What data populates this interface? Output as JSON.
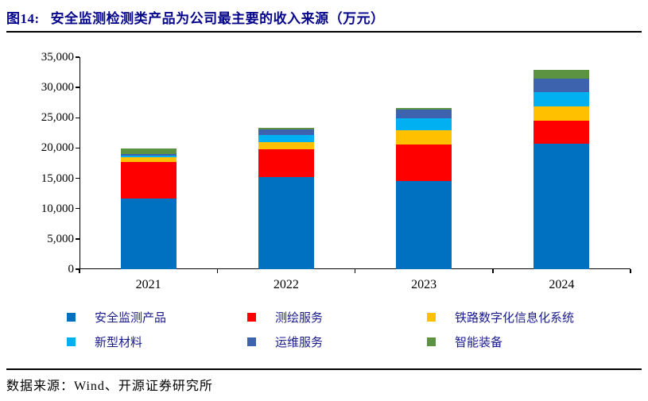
{
  "page": {
    "title_prefix": "图14:",
    "title_text": "安全监测检测类产品为公司最主要的收入来源（万元）",
    "footer_text": "数据来源：Wind、开源证券研究所"
  },
  "chart_data": {
    "type": "bar",
    "stacked": true,
    "title": "图14: 安全监测检测类产品为公司最主要的收入来源（万元）",
    "unit": "万元",
    "categories": [
      "2021",
      "2022",
      "2023",
      "2024"
    ],
    "series": [
      {
        "name": "安全监测产品",
        "color": "#0070C0",
        "values": [
          11670,
          15200,
          14540,
          20680
        ]
      },
      {
        "name": "测绘服务",
        "color": "#FF0000",
        "values": [
          6030,
          4620,
          6070,
          3830
        ]
      },
      {
        "name": "铁路数字化信息化系统",
        "color": "#FFC000",
        "values": [
          830,
          1100,
          2280,
          2330
        ]
      },
      {
        "name": "新型材料",
        "color": "#00B0F0",
        "values": [
          160,
          1230,
          1980,
          2330
        ]
      },
      {
        "name": "运维服务",
        "color": "#3E63AE",
        "values": [
          330,
          920,
          1540,
          2280
        ]
      },
      {
        "name": "智能装备",
        "color": "#5B9342",
        "values": [
          900,
          260,
          170,
          1490
        ]
      }
    ],
    "totals": [
      19920,
      23330,
      26580,
      32940
    ],
    "ylim": [
      0,
      35000
    ],
    "ytick_step": 5000,
    "grid": false,
    "legend_position": "bottom",
    "legend_rows": [
      [
        "安全监测产品",
        "测绘服务",
        "铁路数字化信息化系统"
      ],
      [
        "新型材料",
        "运维服务",
        "智能装备"
      ]
    ]
  }
}
